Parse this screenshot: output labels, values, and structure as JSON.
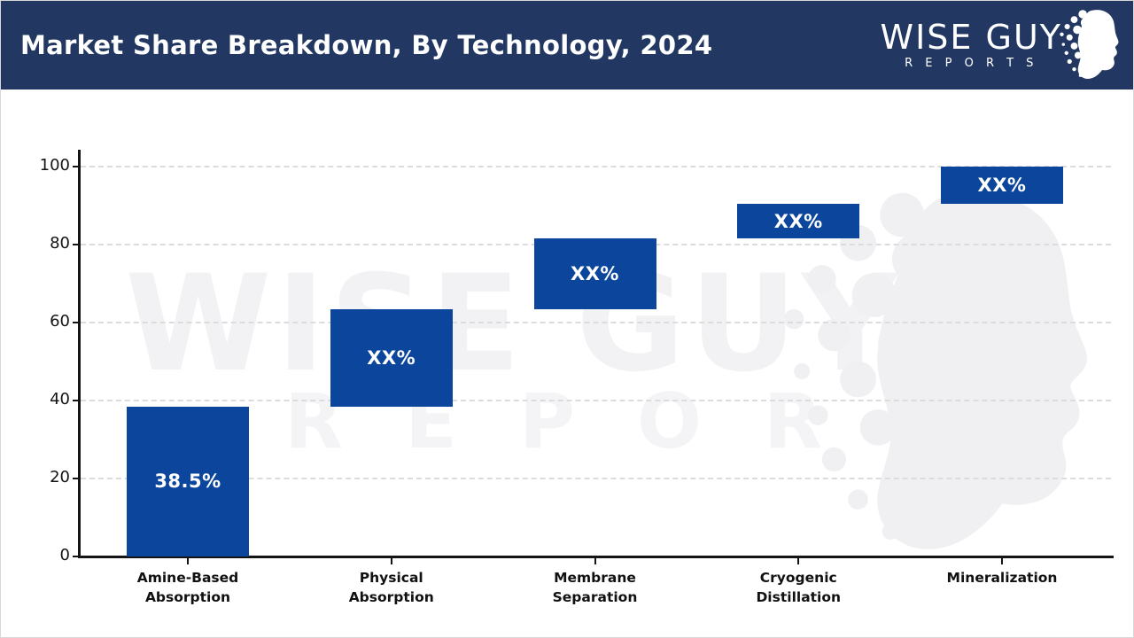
{
  "header": {
    "title": "Market Share Breakdown, By Technology, 2024",
    "logo": {
      "name": "WISE GUY",
      "reports": "R E P O R T S",
      "icon": "wiseguy-face-icon"
    }
  },
  "watermark": {
    "line1": "WISE GUY",
    "line2": "R E P O R T S"
  },
  "colors": {
    "header_bg": "#223863",
    "bar_blue": "#0b459c",
    "axis": "#141414",
    "gridline": "#dcdcdc",
    "watermark_gray": "#f0f0f3",
    "frame_border": "#d9d9d9",
    "title_text": "#ffffff"
  },
  "chart_data": {
    "type": "bar",
    "subtype": "waterfall",
    "title": "Market Share Breakdown, By Technology, 2024",
    "xlabel": "",
    "ylabel": "",
    "unit": "%",
    "ylim": [
      0,
      105
    ],
    "yticks": [
      0,
      20,
      40,
      60,
      80,
      100
    ],
    "grid": "horizontal-dashed",
    "legend": null,
    "bar_color": "#0b459c",
    "bar_label_color": "#ffffff",
    "categories": [
      "Amine-Based Absorption",
      "Physical Absorption",
      "Membrane Separation",
      "Cryogenic Distillation",
      "Mineralization"
    ],
    "bars": [
      {
        "category": "Amine-Based Absorption",
        "lines": [
          "Amine-Based",
          "Absorption"
        ],
        "label": "38.5%",
        "start": 0,
        "end": 38.5
      },
      {
        "category": "Physical Absorption",
        "lines": [
          "Physical",
          "Absorption"
        ],
        "label": "XX%",
        "start": 38.5,
        "end": 63.5
      },
      {
        "category": "Membrane Separation",
        "lines": [
          "Membrane",
          "Separation"
        ],
        "label": "XX%",
        "start": 63.5,
        "end": 81.5
      },
      {
        "category": "Cryogenic Distillation",
        "lines": [
          "Cryogenic",
          "Distillation"
        ],
        "label": "XX%",
        "start": 81.5,
        "end": 90.5
      },
      {
        "category": "Mineralization",
        "lines": [
          "Mineralization"
        ],
        "label": "XX%",
        "start": 90.5,
        "end": 100
      }
    ]
  }
}
